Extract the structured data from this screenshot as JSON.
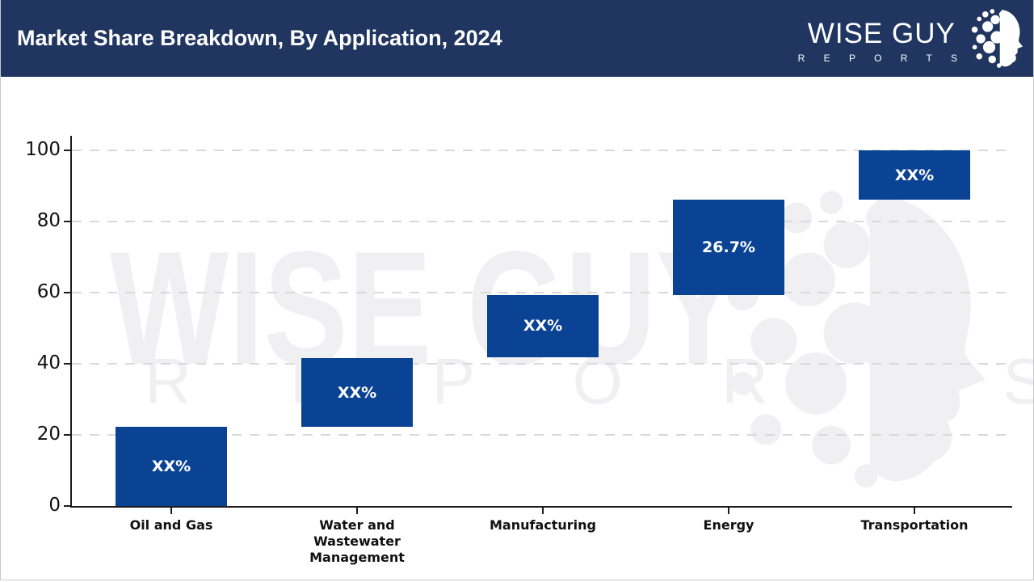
{
  "header": {
    "title": "Market Share Breakdown, By Application, 2024",
    "logo": {
      "line1": "WISE GUY",
      "line2": "REPORTS"
    }
  },
  "watermark": {
    "line1": "WISE GUY",
    "line2": "REPORTS"
  },
  "colors": {
    "header_bg": "#203560",
    "bar_fill": "#0a4294",
    "grid_line": "#d9d9d9",
    "axis": "#1c1c1c",
    "watermark": "#f0f0f2",
    "bar_label": "#ffffff",
    "tick_label": "#111111"
  },
  "chart_data": {
    "type": "bar",
    "subtype": "waterfall",
    "title": "Market Share Breakdown, By Application, 2024",
    "categories": [
      "Oil and Gas",
      "Water and Wastewater Management",
      "Manufacturing",
      "Energy",
      "Transportation"
    ],
    "segments": [
      {
        "category": "Oil and Gas",
        "start": 0,
        "end": 22.2,
        "label": "XX%"
      },
      {
        "category": "Water and Wastewater Management",
        "start": 22.3,
        "end": 41.5,
        "label": "XX%"
      },
      {
        "category": "Manufacturing",
        "start": 41.9,
        "end": 59.4,
        "label": "XX%"
      },
      {
        "category": "Energy",
        "start": 59.4,
        "end": 86.1,
        "label": "26.7%"
      },
      {
        "category": "Transportation",
        "start": 86.2,
        "end": 99.9,
        "label": "XX%"
      }
    ],
    "yticks": [
      0,
      20,
      40,
      60,
      80,
      100
    ],
    "ylim": [
      0,
      104
    ],
    "xlabel": "",
    "ylabel": "",
    "grid": "horizontal-dashed",
    "legend": "none"
  }
}
